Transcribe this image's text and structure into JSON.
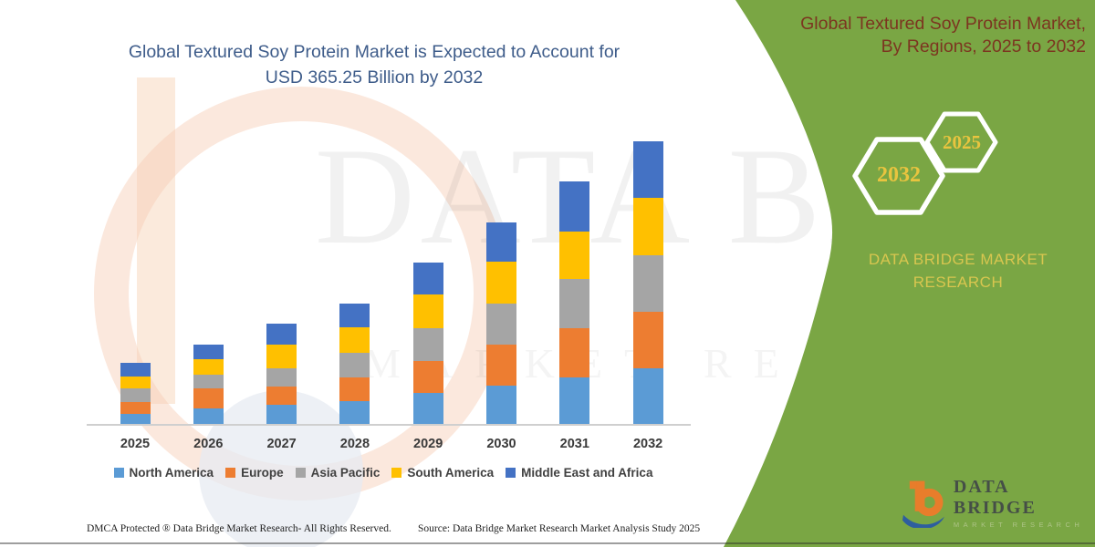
{
  "header": {
    "title_line1": "Global Textured Soy Protein Market is Expected to Account for",
    "title_line2": "USD 365.25 Billion by 2032"
  },
  "side_panel": {
    "title_line1": "Global Textured Soy Protein Market,",
    "title_line2": "By Regions, 2025 to 2032",
    "hexagons": [
      {
        "label": "2032"
      },
      {
        "label": "2025"
      }
    ],
    "brand_line1": "DATA BRIDGE MARKET",
    "brand_line2": "RESEARCH",
    "colors": {
      "panel_green": "#7AA644",
      "title_maroon": "#7C3520",
      "hex_label_yellow": "#E9C43F",
      "brand_yellow": "#D8C64F"
    }
  },
  "watermark": {
    "line1": "DATA BRIDGE",
    "line2": "MARKET RESEARCH"
  },
  "chart_data": {
    "type": "bar",
    "stacked": true,
    "title": "Global Textured Soy Protein Market is Expected to Account for USD 365.25 Billion by 2032",
    "unit": "USD Billion",
    "categories": [
      "2025",
      "2026",
      "2027",
      "2028",
      "2029",
      "2030",
      "2031",
      "2032"
    ],
    "series": [
      {
        "name": "North America",
        "color": "#5B9BD5",
        "values": [
          14.4,
          21.5,
          25.5,
          30.5,
          41.1,
          50.9,
          61.4,
          72.5
        ]
      },
      {
        "name": "Europe",
        "color": "#ED7D31",
        "values": [
          14.9,
          25.5,
          24.3,
          30.2,
          41.1,
          52.0,
          62.6,
          73.2
        ]
      },
      {
        "name": "Asia Pacific",
        "color": "#A5A5A5",
        "values": [
          17.6,
          17.6,
          23.5,
          32.1,
          42.3,
          53.7,
          63.8,
          72.5
        ]
      },
      {
        "name": "South America",
        "color": "#FFC000",
        "values": [
          15.6,
          19.6,
          30.5,
          32.5,
          43.8,
          54.0,
          61.4,
          74.3
        ]
      },
      {
        "name": "Middle East and Africa",
        "color": "#4472C4",
        "values": [
          16.8,
          19.6,
          26.2,
          31.4,
          41.1,
          49.7,
          63.8,
          72.75
        ]
      }
    ],
    "totals_note": "2032 total = 365.25",
    "legend_position": "bottom",
    "gridlines": false,
    "y_axis_shown": false
  },
  "footer": {
    "left": "DMCA Protected ® Data Bridge Market Research-  All Rights Reserved.",
    "source": "Source: Data Bridge Market Research  Market Analysis Study 2025"
  },
  "logo": {
    "brand": "DATA BRIDGE",
    "sub": "MARKET RESEARCH"
  }
}
